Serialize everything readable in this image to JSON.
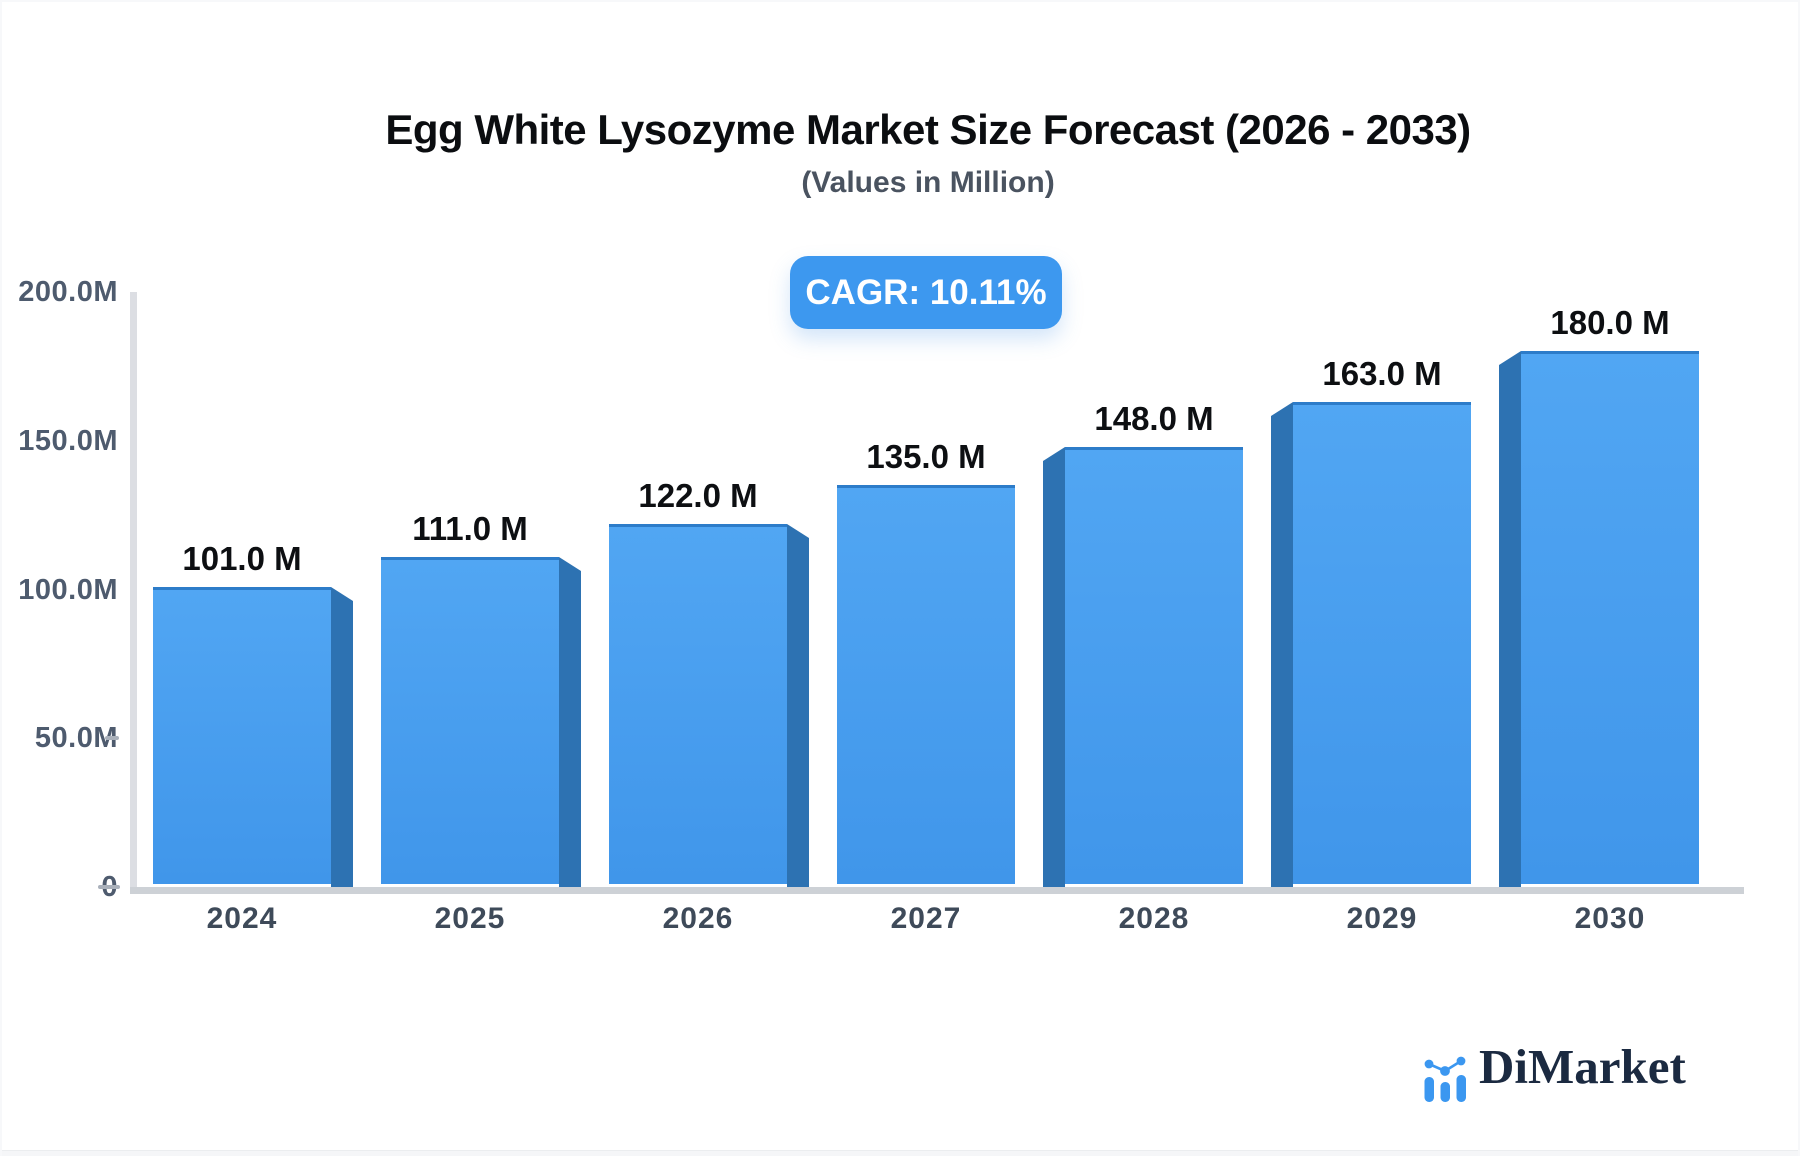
{
  "title": "Egg White Lysozyme Market Size Forecast (2026 - 2033)",
  "subtitle": "(Values in Million)",
  "badge": {
    "label": "CAGR: 10.11%",
    "bg": "#3d98ef",
    "text_color": "#ffffff"
  },
  "chart_data": {
    "type": "bar",
    "categories": [
      "2024",
      "2025",
      "2026",
      "2027",
      "2028",
      "2029",
      "2030"
    ],
    "values": [
      101,
      111,
      122,
      135,
      148,
      163,
      180
    ],
    "value_labels": [
      "101.0 M",
      "111.0 M",
      "122.0 M",
      "135.0 M",
      "148.0 M",
      "163.0 M",
      "180.0 M"
    ],
    "title": "Egg White Lysozyme Market Size Forecast (2026 - 2033)",
    "subtitle": "(Values in Million)",
    "xlabel": "",
    "ylabel": "",
    "unit": "Million",
    "ylim": [
      0,
      200
    ],
    "yticks": [
      {
        "label": "200.0M",
        "value": 200
      },
      {
        "label": "150.0M",
        "value": 150
      },
      {
        "label": "100.0M",
        "value": 100
      },
      {
        "label": "50.0M",
        "value": 50
      },
      {
        "label": "0",
        "value": 0
      }
    ],
    "grid": false,
    "legend": "none",
    "bar_style": "3d-beveled",
    "bar_color": "#459ff1",
    "bar_side_color": "#2d72b2",
    "bar_top_edge_color": "#2d7cc9"
  },
  "logo": {
    "text": "DiMarket",
    "icon": "bar-chart-trend-icon",
    "text_color": "#1b2a41",
    "icon_color": "#3b97f0"
  }
}
